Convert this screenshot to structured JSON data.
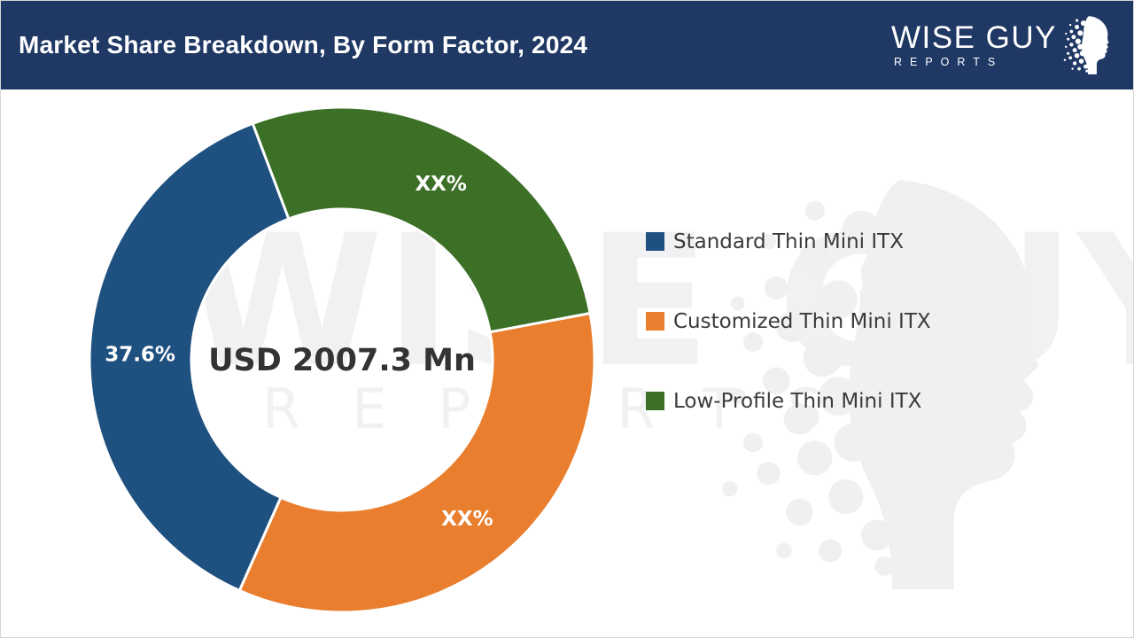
{
  "header": {
    "title": "Market Share Breakdown, By Form Factor, 2024",
    "background_color": "#1F3864",
    "logo": {
      "line1": "WISE GUY",
      "line2": "REPORTS"
    }
  },
  "watermark": {
    "line1": "WISE GUY",
    "line2": "REPORTS"
  },
  "chart_data": {
    "type": "pie",
    "subtype": "donut",
    "title": "Market Share Breakdown, By Form Factor, 2024",
    "center_label": "USD 2007.3 Mn",
    "start_angle_deg": 110.7,
    "legend_position": "right",
    "segments": [
      {
        "name": "Standard Thin Mini ITX",
        "value": 37.6,
        "label": "37.6%",
        "color": "#1F5180"
      },
      {
        "name": "Customized Thin Mini ITX",
        "value": 34.6,
        "label": "XX%",
        "color": "#E87E2E"
      },
      {
        "name": "Low-Profile Thin Mini ITX",
        "value": 27.8,
        "label": "XX%",
        "color": "#3D7027"
      }
    ]
  }
}
